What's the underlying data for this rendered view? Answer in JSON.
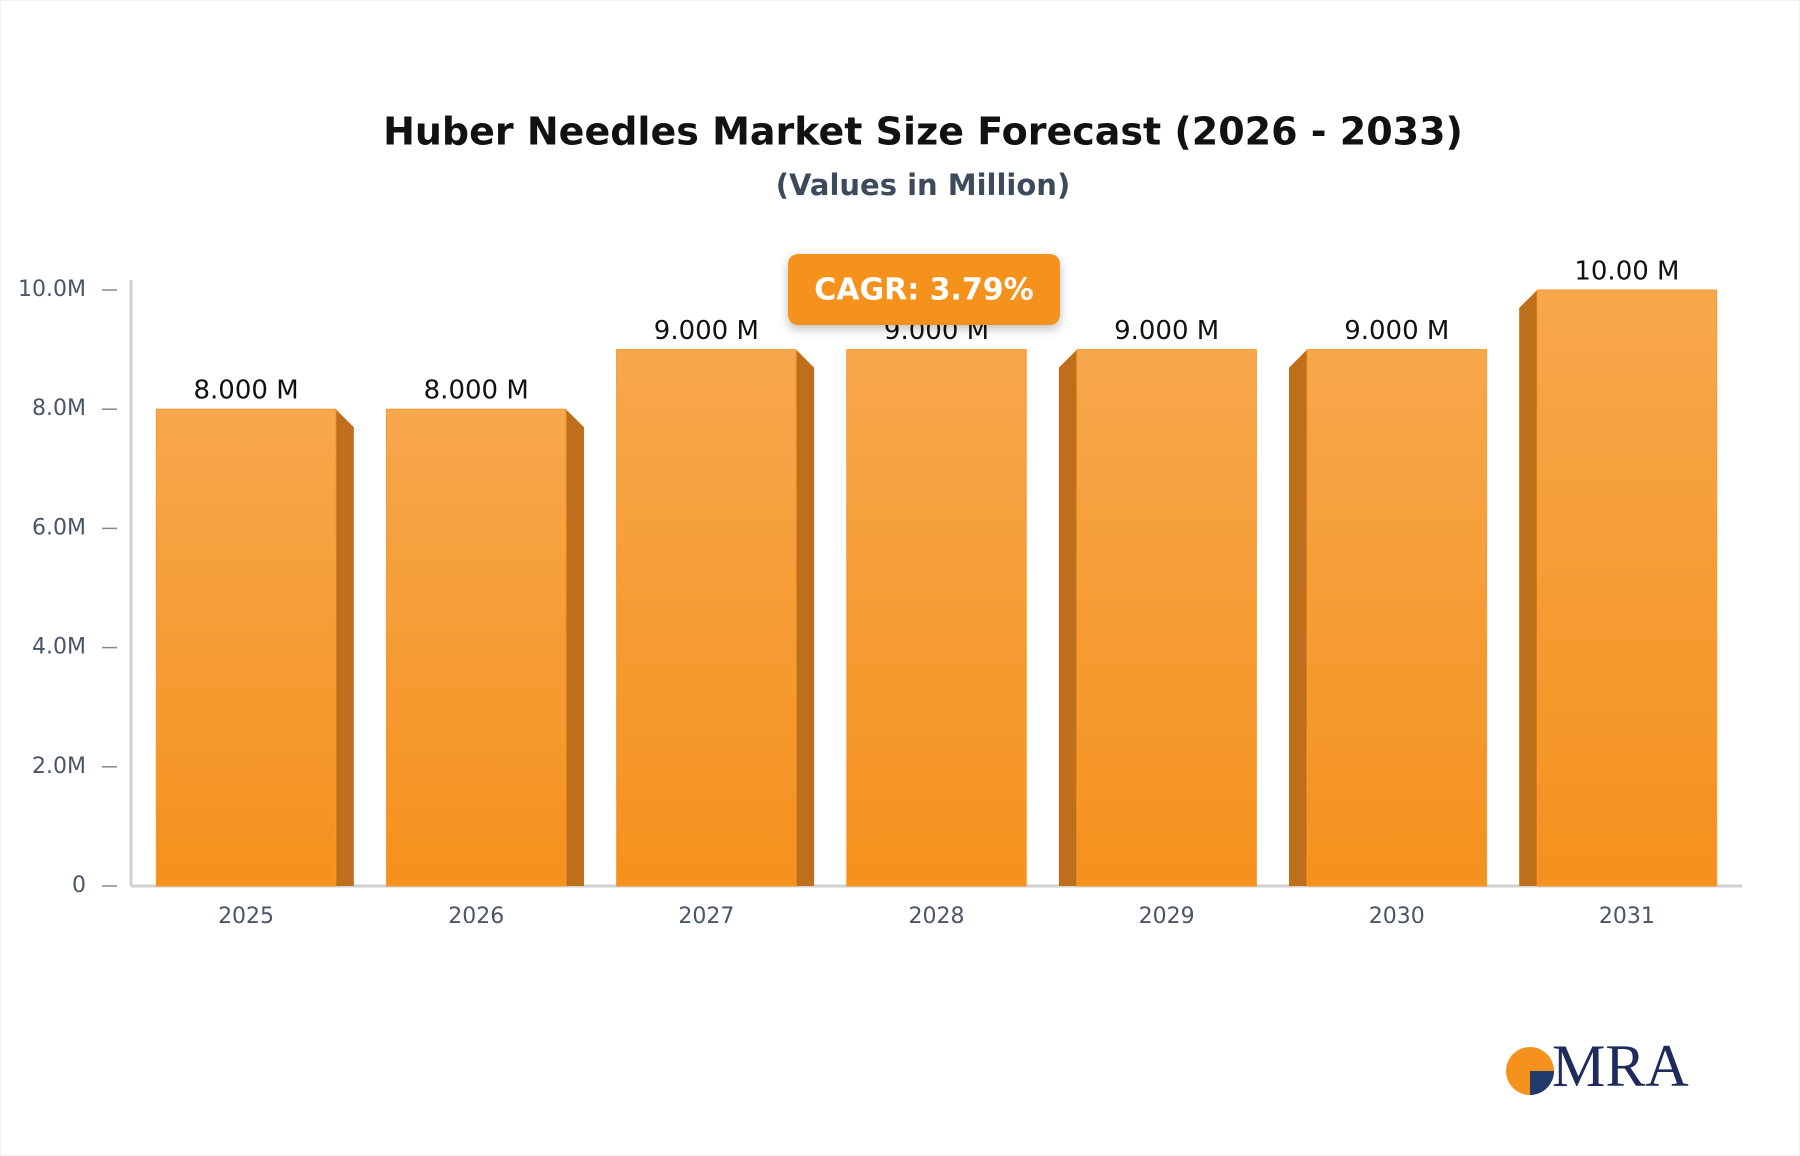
{
  "chart_data": {
    "type": "bar",
    "title": "Huber Needles Market Size Forecast (2026 - 2033)",
    "subtitle": "(Values in Million)",
    "categories": [
      "2025",
      "2026",
      "2027",
      "2028",
      "2029",
      "2030",
      "2031"
    ],
    "values": [
      8,
      8,
      9,
      9,
      9,
      9,
      10
    ],
    "value_labels": [
      "8.000 M",
      "8.000 M",
      "9.000 M",
      "9.000 M",
      "9.000 M",
      "9.000 M",
      "10.00 M"
    ],
    "color": "#f69a2e",
    "ylim": [
      0,
      10
    ],
    "yticks": [
      0,
      {
        "value": 2,
        "label": "2.0M"
      },
      {
        "value": 4,
        "label": "4.0M"
      },
      {
        "value": 6,
        "label": "6.0M"
      },
      {
        "value": 8,
        "label": "8.0M"
      },
      {
        "value": 10,
        "label": "10.0M"
      }
    ],
    "annotation": "CAGR: 3.79%",
    "brand": "MRA"
  }
}
